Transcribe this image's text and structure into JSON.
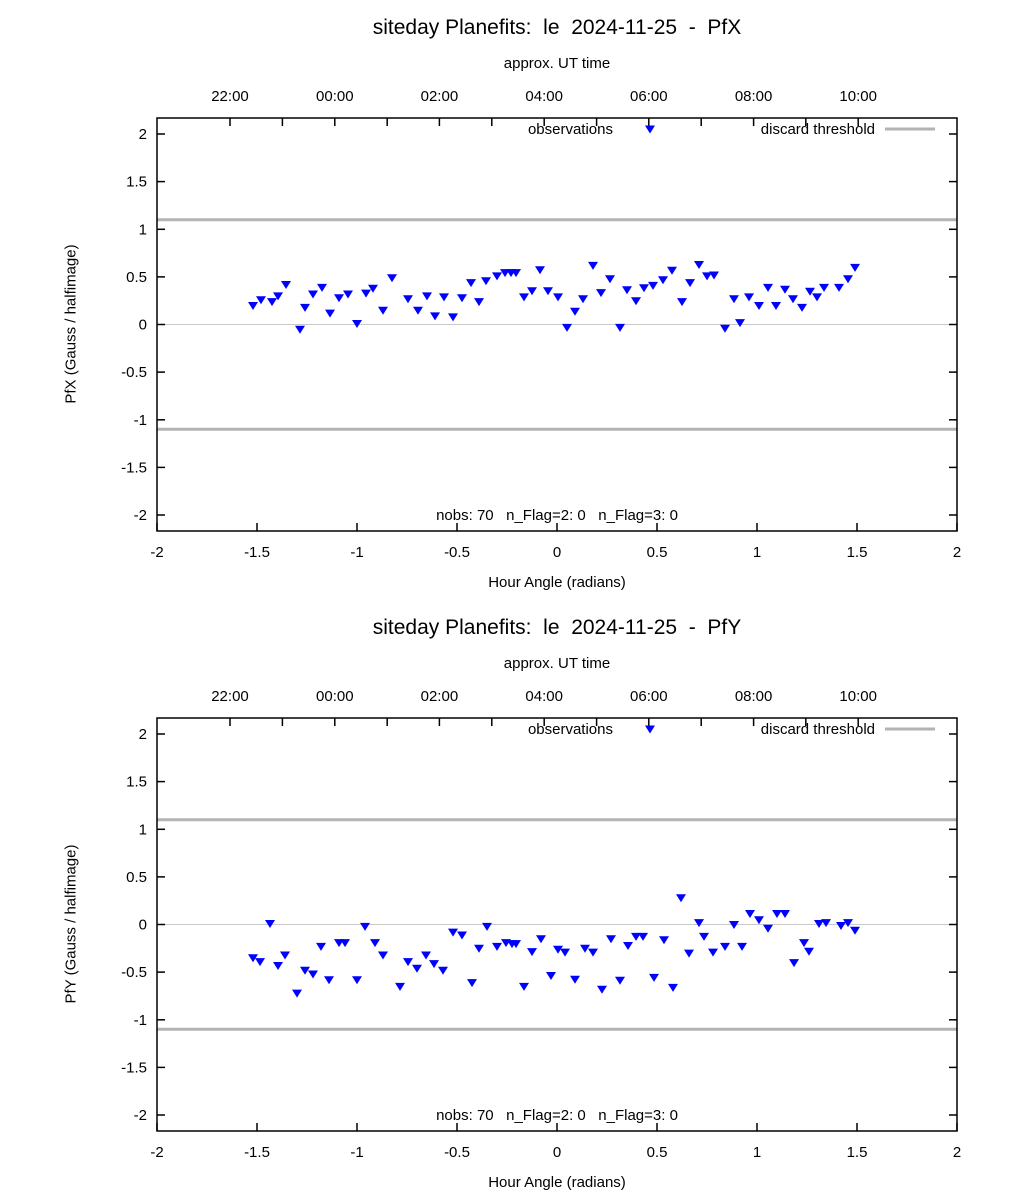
{
  "page": {
    "background": "#ffffff"
  },
  "chart_data": [
    {
      "type": "scatter",
      "title": "siteday Planefits:  le  2024-11-25  -  PfX",
      "top_axis_label": "approx. UT time",
      "xlabel": "Hour Angle (radians)",
      "ylabel": "PfX (Gauss / halfimage)",
      "annotation": "nobs: 70   n_Flag=2: 0   n_Flag=3: 0",
      "legend": [
        {
          "label": "observations",
          "type": "marker"
        },
        {
          "label": "discard threshold",
          "type": "line"
        }
      ],
      "xlim": [
        -2,
        2
      ],
      "ylim": [
        -2.17,
        2.17
      ],
      "grid": "zero-line only",
      "legend_position": "top inside",
      "x_tick_values": [
        -2,
        -1.5,
        -1,
        -0.5,
        0,
        0.5,
        1,
        1.5,
        2
      ],
      "x_tick_labels": [
        "-2",
        "-1.5",
        "-1",
        "-0.5",
        "0",
        "0.5",
        "1",
        "1.5",
        "2"
      ],
      "y_tick_values": [
        2,
        1.5,
        1,
        0.5,
        0,
        -0.5,
        -1,
        -1.5,
        -2
      ],
      "y_tick_labels": [
        "2",
        "1.5",
        "1",
        "0.5",
        "0",
        "-0.5",
        "-1",
        "-1.5",
        "-2"
      ],
      "ut_ticks": [
        [
          "22:00",
          -1.635
        ],
        [
          "00:00",
          -1.111
        ],
        [
          "02:00",
          -0.588
        ],
        [
          "04:00",
          -0.064
        ],
        [
          "06:00",
          0.459
        ],
        [
          "08:00",
          0.983
        ],
        [
          "10:00",
          1.506
        ]
      ],
      "ut_minor_ha": [
        -1.635,
        -1.373,
        -1.111,
        -0.849,
        -0.588,
        -0.326,
        -0.064,
        0.198,
        0.459,
        0.721,
        0.983,
        1.244,
        1.506
      ],
      "threshold": 1.1,
      "zero_line": 0,
      "marker_color": "#0000ff",
      "threshold_color": "#b3b3b3",
      "zero_line_color": "#c9c9c9",
      "points": [
        [
          -1.52,
          0.2
        ],
        [
          -1.48,
          0.26
        ],
        [
          -1.425,
          0.24
        ],
        [
          -1.395,
          0.3
        ],
        [
          -1.355,
          0.42
        ],
        [
          -1.285,
          -0.05
        ],
        [
          -1.26,
          0.18
        ],
        [
          -1.22,
          0.32
        ],
        [
          -1.175,
          0.39
        ],
        [
          -1.135,
          0.12
        ],
        [
          -1.09,
          0.28
        ],
        [
          -1.045,
          0.32
        ],
        [
          -1.0,
          0.01
        ],
        [
          -0.955,
          0.33
        ],
        [
          -0.92,
          0.38
        ],
        [
          -0.87,
          0.15
        ],
        [
          -0.825,
          0.49
        ],
        [
          -0.745,
          0.27
        ],
        [
          -0.695,
          0.15
        ],
        [
          -0.65,
          0.3
        ],
        [
          -0.61,
          0.09
        ],
        [
          -0.565,
          0.29
        ],
        [
          -0.52,
          0.08
        ],
        [
          -0.475,
          0.28
        ],
        [
          -0.43,
          0.44
        ],
        [
          -0.39,
          0.24
        ],
        [
          -0.355,
          0.46
        ],
        [
          -0.3,
          0.51
        ],
        [
          -0.26,
          0.545
        ],
        [
          -0.23,
          0.545
        ],
        [
          -0.205,
          0.545
        ],
        [
          -0.165,
          0.29
        ],
        [
          -0.125,
          0.355
        ],
        [
          -0.085,
          0.575
        ],
        [
          -0.045,
          0.355
        ],
        [
          0.005,
          0.29
        ],
        [
          0.05,
          -0.03
        ],
        [
          0.09,
          0.14
        ],
        [
          0.13,
          0.27
        ],
        [
          0.18,
          0.62
        ],
        [
          0.22,
          0.335
        ],
        [
          0.265,
          0.48
        ],
        [
          0.315,
          -0.03
        ],
        [
          0.35,
          0.365
        ],
        [
          0.395,
          0.25
        ],
        [
          0.435,
          0.385
        ],
        [
          0.48,
          0.41
        ],
        [
          0.53,
          0.47
        ],
        [
          0.575,
          0.57
        ],
        [
          0.625,
          0.24
        ],
        [
          0.665,
          0.44
        ],
        [
          0.71,
          0.63
        ],
        [
          0.75,
          0.51
        ],
        [
          0.785,
          0.52
        ],
        [
          0.84,
          -0.04
        ],
        [
          0.885,
          0.27
        ],
        [
          0.915,
          0.02
        ],
        [
          0.96,
          0.29
        ],
        [
          1.01,
          0.2
        ],
        [
          1.055,
          0.39
        ],
        [
          1.095,
          0.2
        ],
        [
          1.14,
          0.37
        ],
        [
          1.18,
          0.27
        ],
        [
          1.225,
          0.18
        ],
        [
          1.265,
          0.35
        ],
        [
          1.3,
          0.29
        ],
        [
          1.335,
          0.39
        ],
        [
          1.41,
          0.39
        ],
        [
          1.455,
          0.48
        ],
        [
          1.49,
          0.6
        ]
      ]
    },
    {
      "type": "scatter",
      "title": "siteday Planefits:  le  2024-11-25  -  PfY",
      "top_axis_label": "approx. UT time",
      "xlabel": "Hour Angle (radians)",
      "ylabel": "PfY (Gauss / halfimage)",
      "annotation": "nobs: 70   n_Flag=2: 0   n_Flag=3: 0",
      "legend": [
        {
          "label": "observations",
          "type": "marker"
        },
        {
          "label": "discard threshold",
          "type": "line"
        }
      ],
      "xlim": [
        -2,
        2
      ],
      "ylim": [
        -2.17,
        2.17
      ],
      "grid": "zero-line only",
      "legend_position": "top inside",
      "x_tick_values": [
        -2,
        -1.5,
        -1,
        -0.5,
        0,
        0.5,
        1,
        1.5,
        2
      ],
      "x_tick_labels": [
        "-2",
        "-1.5",
        "-1",
        "-0.5",
        "0",
        "0.5",
        "1",
        "1.5",
        "2"
      ],
      "y_tick_values": [
        2,
        1.5,
        1,
        0.5,
        0,
        -0.5,
        -1,
        -1.5,
        -2
      ],
      "y_tick_labels": [
        "2",
        "1.5",
        "1",
        "0.5",
        "0",
        "-0.5",
        "-1",
        "-1.5",
        "-2"
      ],
      "ut_ticks": [
        [
          "22:00",
          -1.635
        ],
        [
          "00:00",
          -1.111
        ],
        [
          "02:00",
          -0.588
        ],
        [
          "04:00",
          -0.064
        ],
        [
          "06:00",
          0.459
        ],
        [
          "08:00",
          0.983
        ],
        [
          "10:00",
          1.506
        ]
      ],
      "ut_minor_ha": [
        -1.635,
        -1.373,
        -1.111,
        -0.849,
        -0.588,
        -0.326,
        -0.064,
        0.198,
        0.459,
        0.721,
        0.983,
        1.244,
        1.506
      ],
      "threshold": 1.1,
      "zero_line": 0,
      "marker_color": "#0000ff",
      "threshold_color": "#b3b3b3",
      "zero_line_color": "#c9c9c9",
      "points": [
        [
          -1.52,
          -0.35
        ],
        [
          -1.485,
          -0.39
        ],
        [
          -1.435,
          0.01
        ],
        [
          -1.395,
          -0.43
        ],
        [
          -1.36,
          -0.32
        ],
        [
          -1.3,
          -0.72
        ],
        [
          -1.26,
          -0.48
        ],
        [
          -1.22,
          -0.52
        ],
        [
          -1.18,
          -0.23
        ],
        [
          -1.14,
          -0.58
        ],
        [
          -1.09,
          -0.19
        ],
        [
          -1.06,
          -0.19
        ],
        [
          -1.0,
          -0.58
        ],
        [
          -0.96,
          -0.02
        ],
        [
          -0.91,
          -0.19
        ],
        [
          -0.87,
          -0.32
        ],
        [
          -0.785,
          -0.65
        ],
        [
          -0.745,
          -0.39
        ],
        [
          -0.7,
          -0.46
        ],
        [
          -0.655,
          -0.32
        ],
        [
          -0.615,
          -0.41
        ],
        [
          -0.57,
          -0.48
        ],
        [
          -0.52,
          -0.08
        ],
        [
          -0.475,
          -0.11
        ],
        [
          -0.425,
          -0.61
        ],
        [
          -0.39,
          -0.25
        ],
        [
          -0.35,
          -0.02
        ],
        [
          -0.3,
          -0.23
        ],
        [
          -0.255,
          -0.19
        ],
        [
          -0.225,
          -0.2
        ],
        [
          -0.205,
          -0.2
        ],
        [
          -0.165,
          -0.65
        ],
        [
          -0.125,
          -0.285
        ],
        [
          -0.08,
          -0.15
        ],
        [
          -0.03,
          -0.535
        ],
        [
          0.005,
          -0.26
        ],
        [
          0.04,
          -0.29
        ],
        [
          0.09,
          -0.575
        ],
        [
          0.14,
          -0.25
        ],
        [
          0.18,
          -0.29
        ],
        [
          0.225,
          -0.68
        ],
        [
          0.27,
          -0.15
        ],
        [
          0.315,
          -0.585
        ],
        [
          0.355,
          -0.22
        ],
        [
          0.395,
          -0.125
        ],
        [
          0.43,
          -0.125
        ],
        [
          0.485,
          -0.555
        ],
        [
          0.535,
          -0.16
        ],
        [
          0.58,
          -0.66
        ],
        [
          0.62,
          0.28
        ],
        [
          0.66,
          -0.3
        ],
        [
          0.71,
          0.02
        ],
        [
          0.735,
          -0.125
        ],
        [
          0.78,
          -0.29
        ],
        [
          0.84,
          -0.23
        ],
        [
          0.885,
          0.0
        ],
        [
          0.925,
          -0.23
        ],
        [
          0.965,
          0.115
        ],
        [
          1.01,
          0.05
        ],
        [
          1.055,
          -0.04
        ],
        [
          1.1,
          0.115
        ],
        [
          1.14,
          0.115
        ],
        [
          1.185,
          -0.4
        ],
        [
          1.235,
          -0.19
        ],
        [
          1.26,
          -0.28
        ],
        [
          1.31,
          0.01
        ],
        [
          1.345,
          0.02
        ],
        [
          1.42,
          -0.01
        ],
        [
          1.455,
          0.02
        ],
        [
          1.49,
          -0.06
        ]
      ]
    }
  ]
}
